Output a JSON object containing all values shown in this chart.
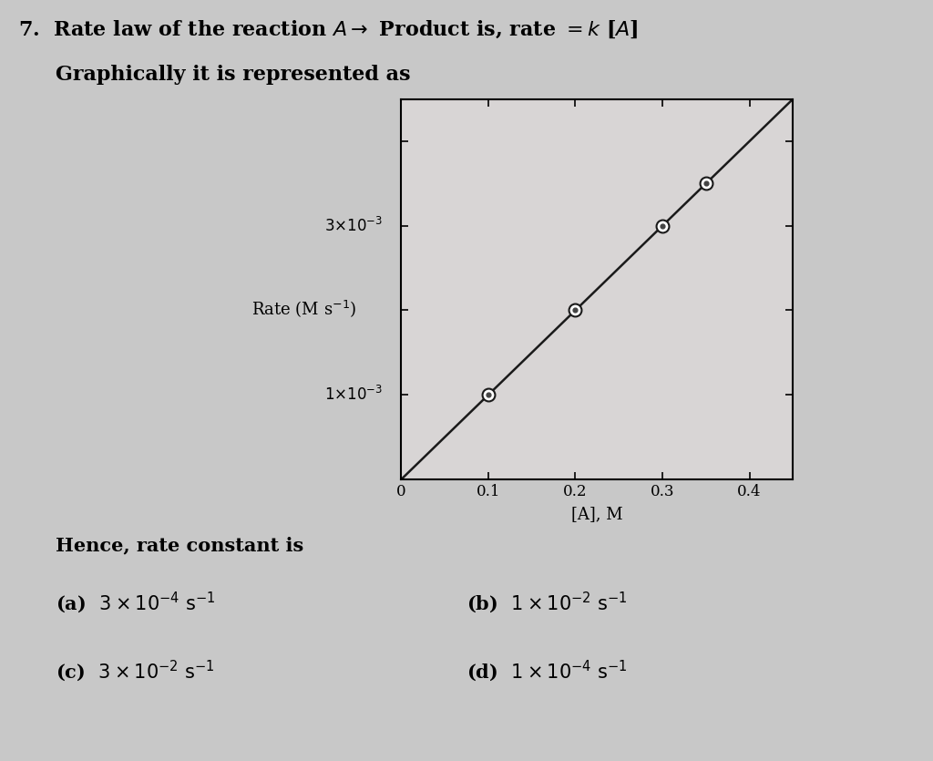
{
  "xlabel": "[A], M",
  "x_data": [
    0.0,
    0.1,
    0.2,
    0.3,
    0.35,
    0.45
  ],
  "y_data": [
    0.0,
    0.001,
    0.002,
    0.003,
    0.0035,
    0.0045
  ],
  "point_x": [
    0.1,
    0.2,
    0.3,
    0.35
  ],
  "point_y": [
    0.001,
    0.002,
    0.003,
    0.0035
  ],
  "xlim": [
    0,
    0.45
  ],
  "ylim": [
    0,
    0.0045
  ],
  "xticks": [
    0,
    0.1,
    0.2,
    0.3,
    0.4
  ],
  "xtick_labels": [
    "0",
    "0.1",
    "0.2",
    "0.3",
    "0.4"
  ],
  "ytick_positions": [
    0.001,
    0.002,
    0.003,
    0.004
  ],
  "line_color": "#1a1a1a",
  "point_color": "#ffffff",
  "point_edge_color": "#1a1a1a",
  "point_size": 100,
  "line_width": 1.8,
  "background_color": "#c8c8c8",
  "plot_bg_color": "#d8d5d5",
  "footer_text": "Hence, rate constant is",
  "option_a": "(a)  3 × 10⁻⁴ s⁻¹",
  "option_b": "(b)  1 × 10⁻² s⁻¹",
  "option_c": "(c)  3 × 10⁻² s⁻¹",
  "option_d": "(d)  1 × 10⁻⁴ s⁻¹"
}
